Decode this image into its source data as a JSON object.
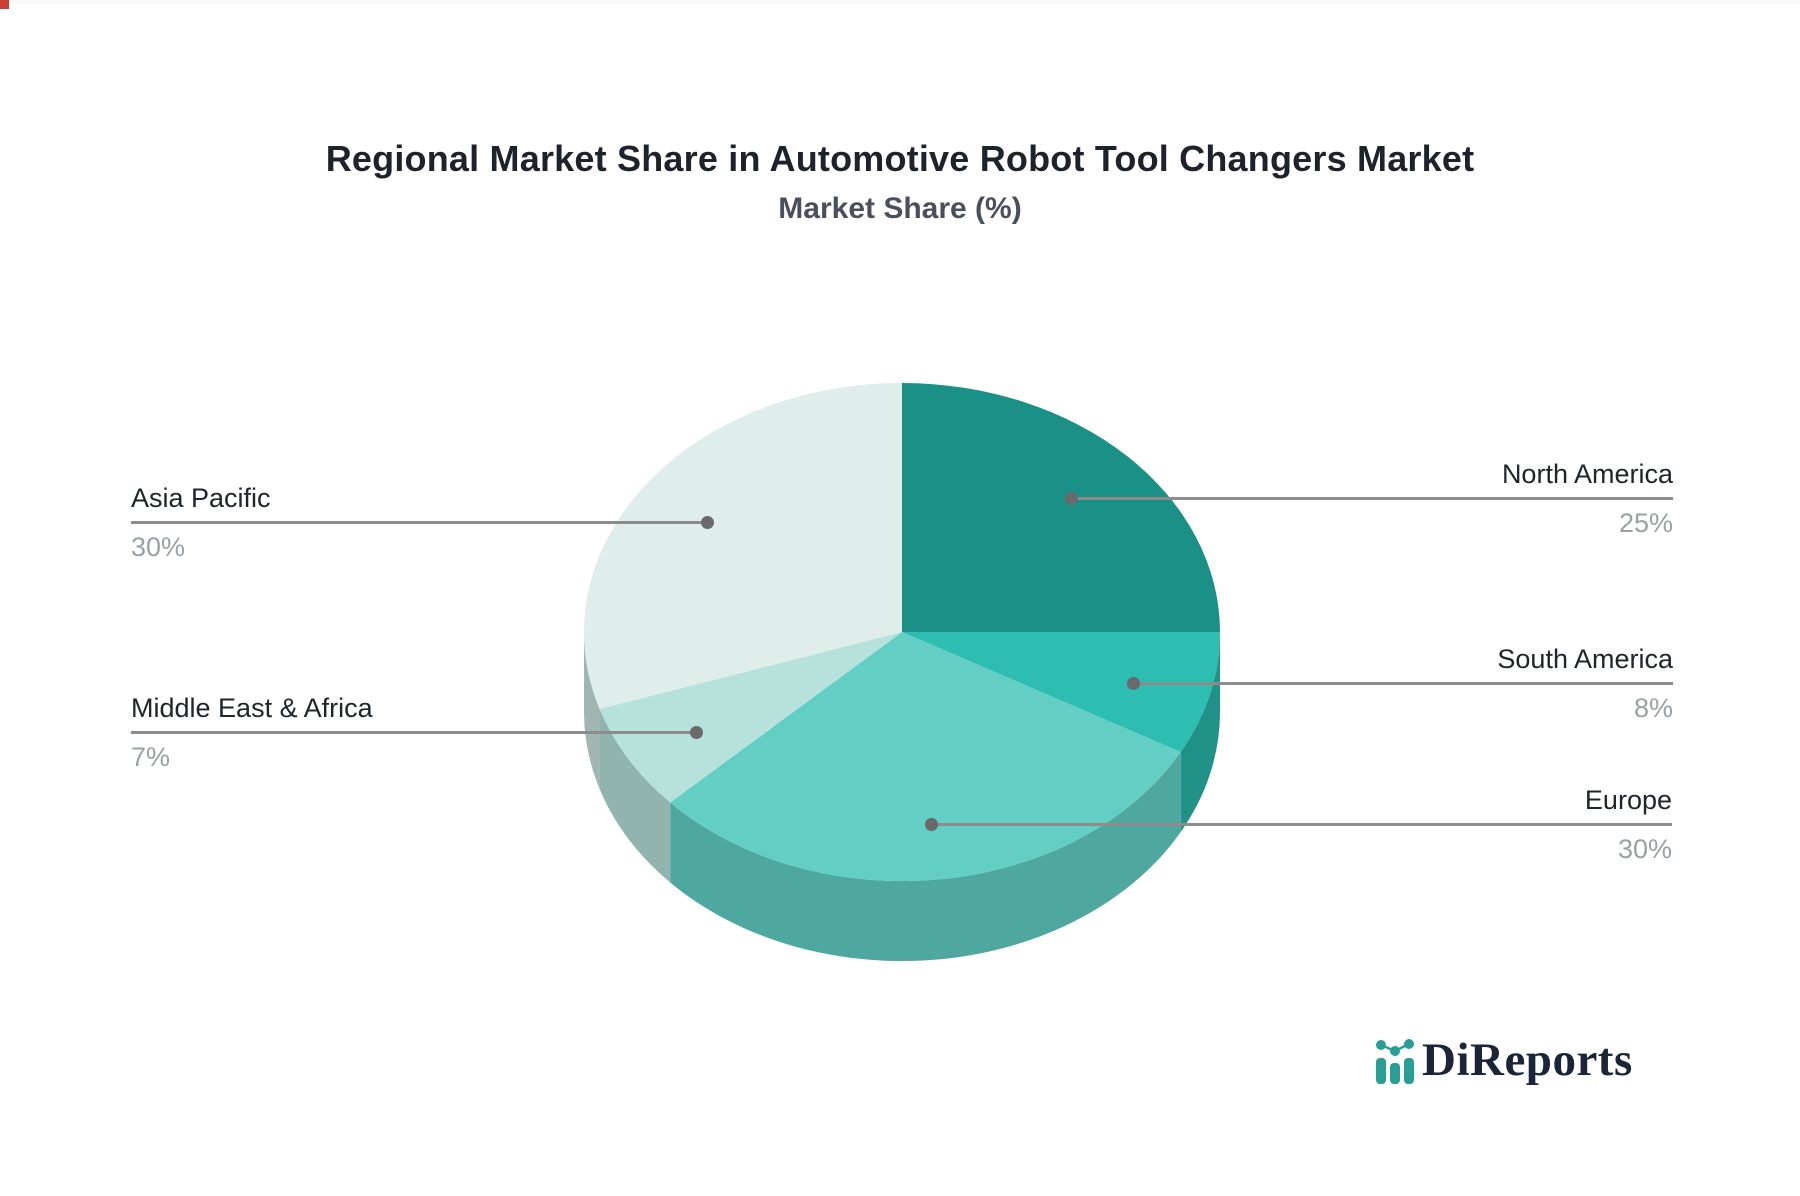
{
  "page": {
    "background": "#ffffff",
    "corner_mark_color": "#cd3e32",
    "top_strip_color": "#f7f9fb"
  },
  "chart_data": {
    "type": "pie",
    "style": "3d-ellipse-with-depth",
    "title": "Regional Market Share in Automotive Robot Tool Changers Market",
    "subtitle": "Market Share (%)",
    "unit": "%",
    "start_angle_deg": 90,
    "clockwise": true,
    "legend_position": "none",
    "label_style": "leader-line callouts; region name above line, percent value below line",
    "slices": [
      {
        "name": "North America",
        "value": 25,
        "pct_label": "25%",
        "color": "#1a9087",
        "side_color": "#23948b",
        "label_side": "right"
      },
      {
        "name": "South America",
        "value": 8,
        "pct_label": "8%",
        "color": "#2dbdb1",
        "side_color": "#219288",
        "label_side": "right"
      },
      {
        "name": "Europe",
        "value": 30,
        "pct_label": "30%",
        "color": "#62cec4",
        "side_color": "#4fa89f",
        "label_side": "right"
      },
      {
        "name": "Middle East & Africa",
        "value": 7,
        "pct_label": "7%",
        "color": "#b7e2dc",
        "side_color": "#92b4ae",
        "label_side": "left"
      },
      {
        "name": "Asia Pacific",
        "value": 30,
        "pct_label": "30%",
        "color": "#dfeeea",
        "side_color": "#a2b6b1",
        "label_side": "left"
      }
    ]
  },
  "colors": {
    "title": "#1d222b",
    "subtitle": "#49505c",
    "label_name": "#20252a",
    "label_value": "#9aa0a3",
    "leader_line": "#8c8c8c",
    "leader_dot": "#6a6a6a"
  },
  "logo": {
    "text": "DiReports",
    "icon": "bar-line-chart-icon",
    "text_color": "#1b2537",
    "icon_color": "#2a9e95"
  }
}
